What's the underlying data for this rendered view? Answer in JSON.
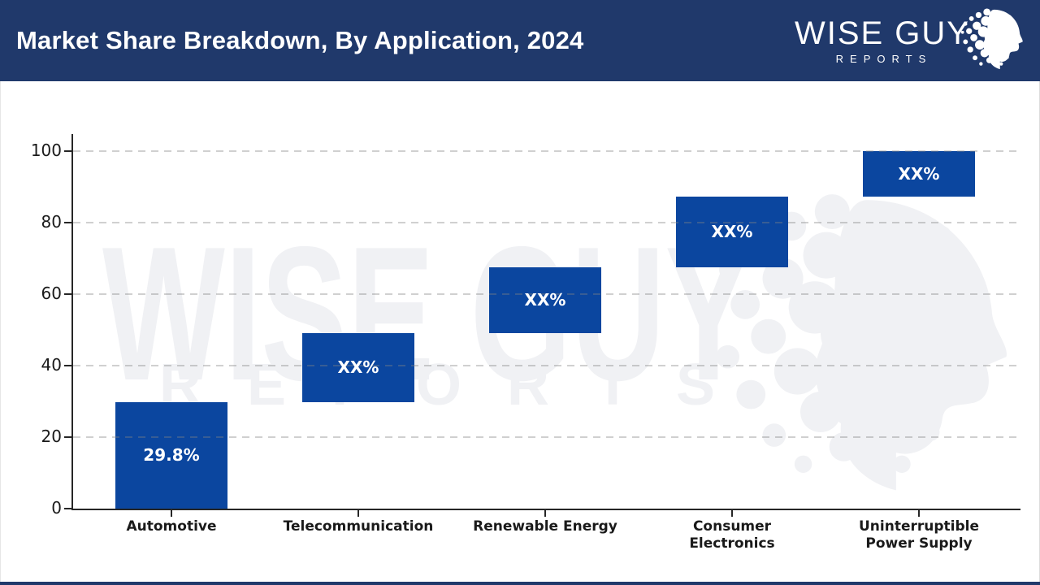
{
  "header": {
    "title": "Market Share Breakdown, By Application, 2024",
    "logo": {
      "wordmark": "WISE GUY",
      "subtext": "REPORTS"
    }
  },
  "watermark": {
    "wordmark": "WISE GUY",
    "subtext": "REPORTS"
  },
  "chart_data": {
    "type": "bar",
    "variant": "waterfall",
    "title": "Market Share Breakdown, By Application, 2024",
    "categories": [
      "Automotive",
      "Telecommunication",
      "Renewable Energy",
      "Consumer\nElectronics",
      "Uninterruptible\nPower Supply"
    ],
    "bars": [
      {
        "category": "Automotive",
        "start": 0,
        "end": 29.8,
        "label": "29.8%"
      },
      {
        "category": "Telecommunication",
        "start": 29.8,
        "end": 49.1,
        "label": "XX%"
      },
      {
        "category": "Renewable Energy",
        "start": 49.1,
        "end": 67.5,
        "label": "XX%"
      },
      {
        "category": "Consumer Electronics",
        "start": 67.5,
        "end": 87.3,
        "label": "XX%"
      },
      {
        "category": "Uninterruptible Power Supply",
        "start": 87.3,
        "end": 100,
        "label": "XX%"
      }
    ],
    "xlabel": "",
    "ylabel": "",
    "ylim": [
      0,
      100
    ],
    "yticks": [
      0,
      20,
      40,
      60,
      80,
      100
    ],
    "grid": "dashed-horizontal",
    "legend": "none",
    "bar_color": "#0b469f",
    "value_label_color": "#ffffff"
  },
  "colors": {
    "header_bg": "#20396b",
    "footer_bg": "#20396b",
    "bar": "#0b469f",
    "grid_dash": "#d9d9d9",
    "axis": "#262626",
    "watermark": "#f0f1f4",
    "background": "#ffffff"
  }
}
